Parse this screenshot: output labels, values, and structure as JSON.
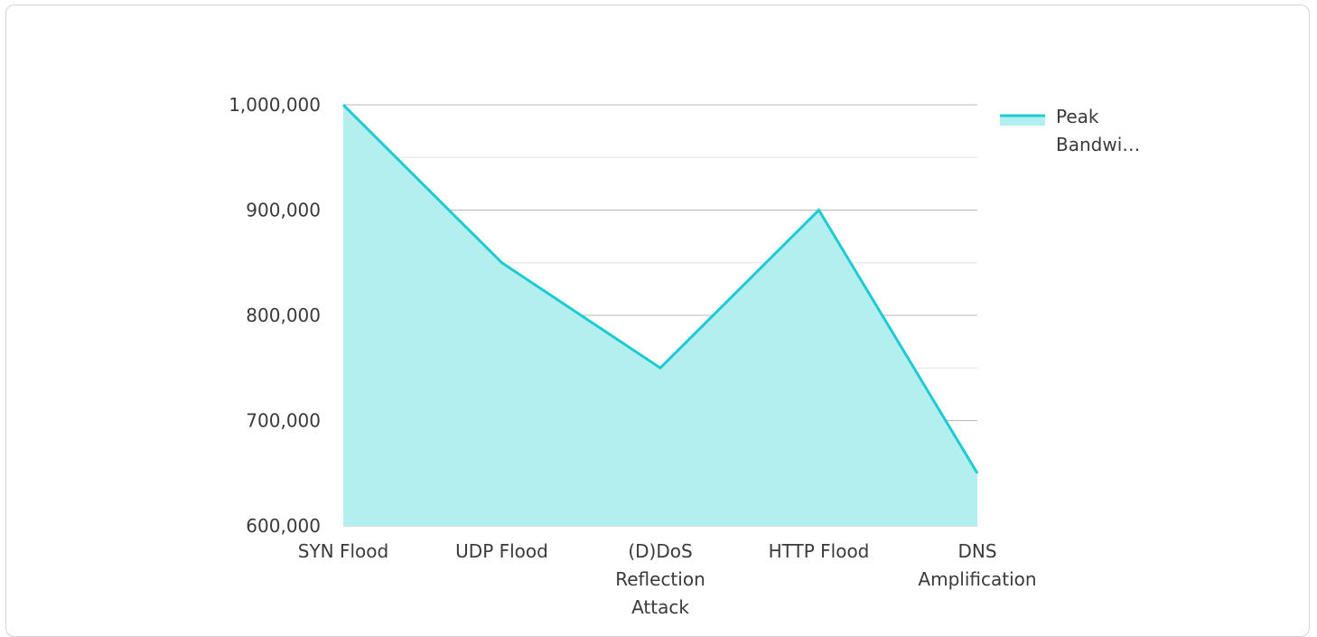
{
  "chart_data": {
    "type": "area",
    "categories": [
      [
        "SYN Flood"
      ],
      [
        "UDP Flood"
      ],
      [
        "(D)DoS",
        "Reflection",
        "Attack"
      ],
      [
        "HTTP Flood"
      ],
      [
        "DNS",
        "Amplification"
      ]
    ],
    "series": [
      {
        "name": "Peak Bandwi…",
        "values": [
          1000000,
          850000,
          750000,
          900000,
          650000
        ],
        "color": "#1ecad3",
        "fill": "#b3efee"
      }
    ],
    "ylim": [
      600000,
      1000000
    ],
    "yticks": [
      600000,
      700000,
      800000,
      900000,
      1000000
    ],
    "ytick_labels": [
      "600,000",
      "700,000",
      "800,000",
      "900,000",
      "1,000,000"
    ],
    "grid": true,
    "legend": "top-right",
    "legend_lines": [
      "Peak",
      "Bandwi…"
    ]
  }
}
